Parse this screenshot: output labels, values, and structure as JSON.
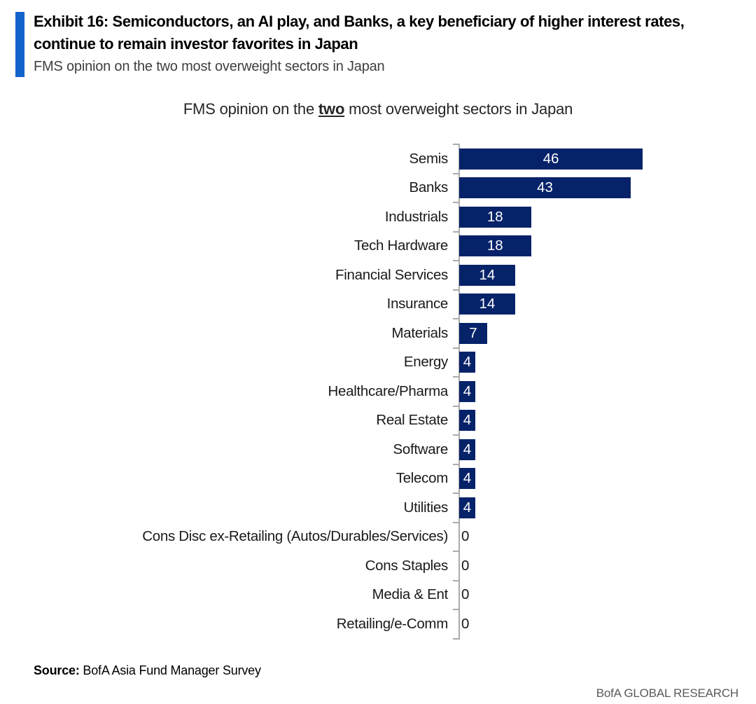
{
  "header": {
    "title": "Exhibit 16: Semiconductors, an AI play, and Banks, a key beneficiary of higher interest rates, continue to remain investor favorites in Japan",
    "subtitle": "FMS opinion on the two most overweight sectors in Japan"
  },
  "chart_data": {
    "type": "bar",
    "orientation": "horizontal",
    "title": {
      "prefix": "FMS opinion on the ",
      "emphasis": "two",
      "suffix": " most overweight sectors in Japan",
      "full": "FMS opinion on the two most overweight sectors in Japan"
    },
    "categories": [
      "Semis",
      "Banks",
      "Industrials",
      "Tech Hardware",
      "Financial Services",
      "Insurance",
      "Materials",
      "Energy",
      "Healthcare/Pharma",
      "Real Estate",
      "Software",
      "Telecom",
      "Utilities",
      "Cons Disc ex-Retailing (Autos/Durables/Services)",
      "Cons Staples",
      "Media & Ent",
      "Retailing/e-Comm"
    ],
    "values": [
      46,
      43,
      18,
      18,
      14,
      14,
      7,
      4,
      4,
      4,
      4,
      4,
      4,
      0,
      0,
      0,
      0
    ],
    "xlim": [
      0,
      50
    ],
    "grid": "off",
    "legend": "none",
    "bar_color": "#062269",
    "value_label_inside_color": "#FFFFFF",
    "value_label_zero_color": "#1A1A1A",
    "axis_color": "#ABABAB"
  },
  "footer": {
    "source_label": "Source:",
    "source_text": " BofA Asia Fund Manager Survey",
    "brand": "BofA GLOBAL RESEARCH"
  },
  "colors": {
    "accent_bar": "#1262CC"
  }
}
